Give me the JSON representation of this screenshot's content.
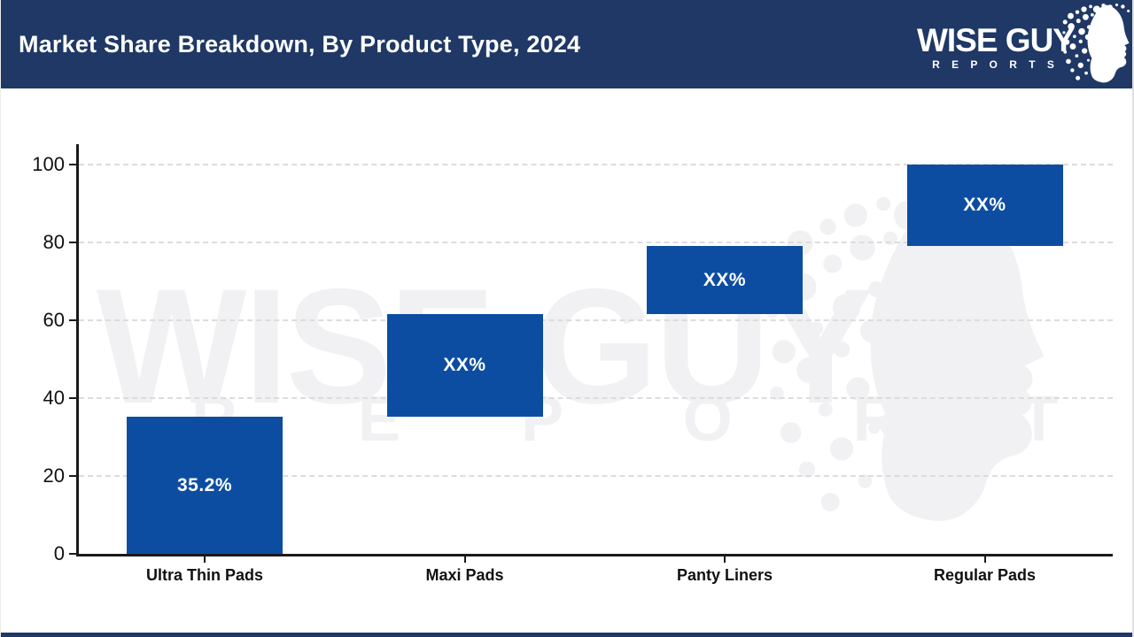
{
  "header": {
    "title": "Market Share Breakdown, By Product Type, 2024",
    "logo_line1": "WISE GUY",
    "logo_line2": "R E P O R T S"
  },
  "watermark": {
    "line1": "WISE GUY",
    "line2": "R E P O R T S"
  },
  "colors": {
    "header_bg": "#1F3865",
    "footer_bg": "#1F3865",
    "bar": "#0C4DA2",
    "bar_label": "#FFFFFF",
    "axis": "#1A1A1A",
    "grid": "#DCDCDC",
    "watermark": "#F1F1F3"
  },
  "chart_data": {
    "type": "bar",
    "subtype": "waterfall",
    "title": "Market Share Breakdown, By Product Type, 2024",
    "categories": [
      "Ultra Thin Pads",
      "Maxi Pads",
      "Panty Liners",
      "Regular Pads"
    ],
    "segments": [
      {
        "category": "Ultra Thin Pads",
        "start": 0,
        "end": 35.2,
        "label": "35.2%"
      },
      {
        "category": "Maxi Pads",
        "start": 35.2,
        "end": 61.5,
        "label": "XX%"
      },
      {
        "category": "Panty Liners",
        "start": 61.5,
        "end": 79.0,
        "label": "XX%"
      },
      {
        "category": "Regular Pads",
        "start": 79.0,
        "end": 100.0,
        "label": "XX%"
      }
    ],
    "y_ticks": [
      0,
      20,
      40,
      60,
      80,
      100
    ],
    "ylim": [
      0,
      105
    ],
    "xlabel": "",
    "ylabel": "",
    "grid": "horizontal-dashed",
    "legend": "none"
  }
}
